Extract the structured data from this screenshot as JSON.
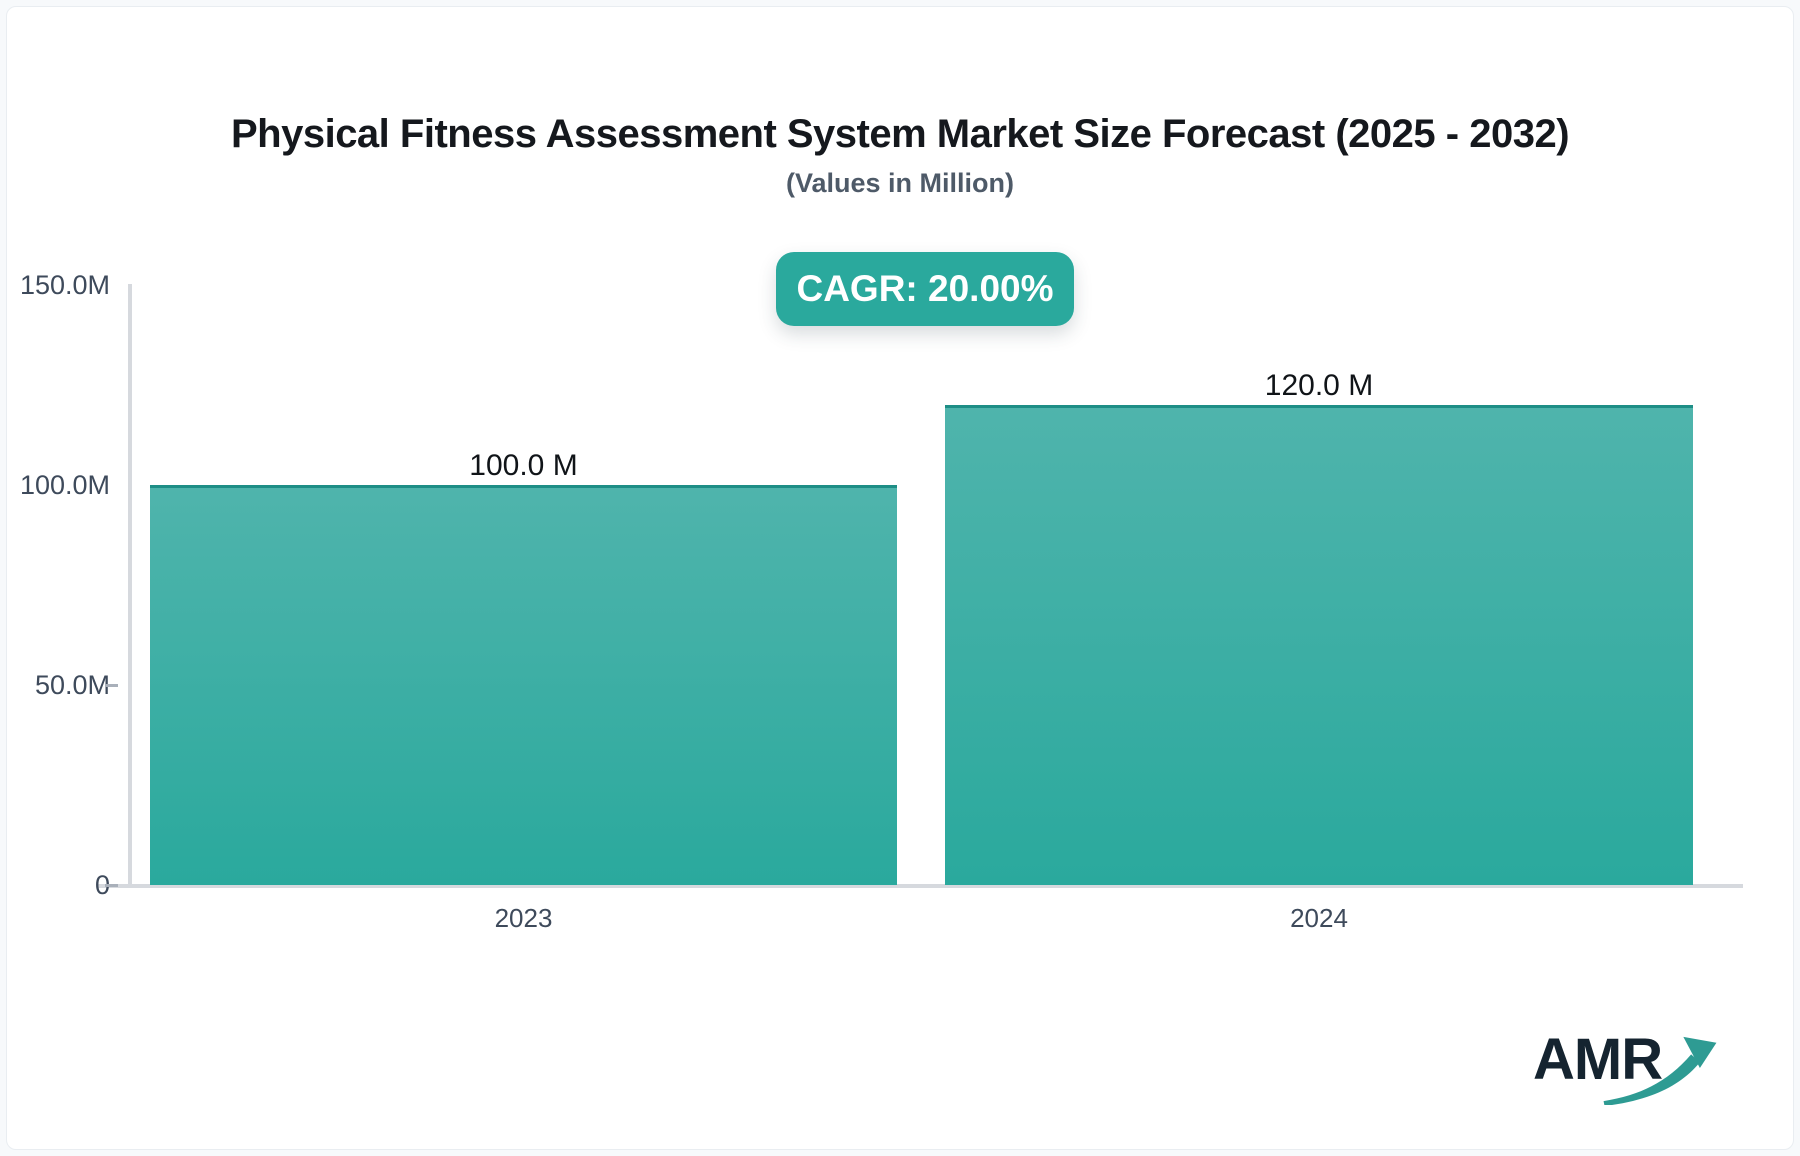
{
  "header": {
    "title": "Physical Fitness Assessment System Market Size Forecast (2025 - 2032)",
    "subtitle": "(Values in Million)",
    "cagr_badge": "CAGR: 20.00%"
  },
  "chart_data": {
    "type": "bar",
    "title": "Physical Fitness Assessment System Market Size Forecast (2025 - 2032)",
    "subtitle": "(Values in Million)",
    "cagr": "20.00%",
    "categories": [
      "2023",
      "2024"
    ],
    "values": [
      100.0,
      120.0
    ],
    "value_labels": [
      "100.0 M",
      "120.0 M"
    ],
    "unit": "Million",
    "xlabel": "",
    "ylabel": "",
    "ylim": [
      0,
      150
    ],
    "yticks": [
      {
        "value": 150,
        "label": "150.0M",
        "has_tick": false
      },
      {
        "value": 100,
        "label": "100.0M",
        "has_tick": false
      },
      {
        "value": 50,
        "label": "50.0M",
        "has_tick": true
      },
      {
        "value": 0,
        "label": "0",
        "has_tick": true
      }
    ],
    "grid": false,
    "legend": false
  },
  "colors": {
    "accent_teal": "#2AA99D",
    "bar_gradient_top": "#4FB4AC",
    "bar_gradient_bottom": "#2AA99D",
    "bar_top_border": "#1E8E86",
    "axis_line": "#D6D9DE",
    "tick_mark": "#A9B0BA",
    "title_text": "#15181D",
    "subtitle_text": "#4E5A68",
    "axis_label_text": "#3E4A5B",
    "value_label_text": "#101418",
    "badge_background": "#2AA99D",
    "badge_text": "#FFFFFF",
    "logo_text": "#152430",
    "logo_arrow": "#2E9B93"
  },
  "logo": {
    "text": "AMR",
    "arrow_icon": "growth-arrow-icon"
  }
}
